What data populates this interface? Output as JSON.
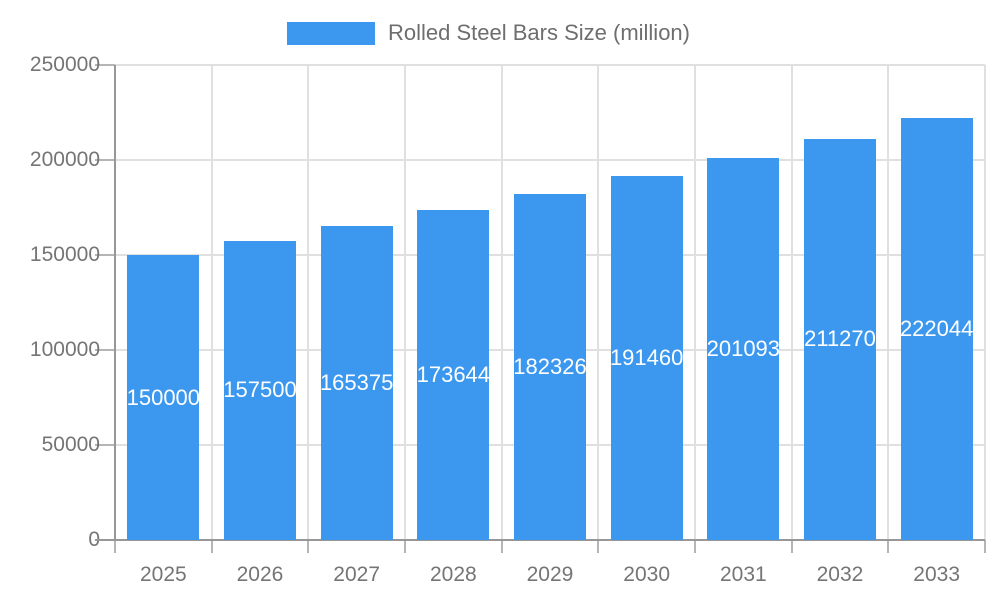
{
  "legend": {
    "label": "Rolled Steel Bars Size (million)",
    "swatch_color": "#3b98ee"
  },
  "colors": {
    "bar": "#3b98ee",
    "grid": "#e0e0e0",
    "axis": "#979797",
    "tick": "#b5b5b5",
    "axis_label": "#757575",
    "legend_text": "#6e6e6e",
    "value_label": "#ffffff",
    "background": "#ffffff"
  },
  "chart_data": {
    "type": "bar",
    "title": "",
    "xlabel": "",
    "ylabel": "",
    "categories": [
      "2025",
      "2026",
      "2027",
      "2028",
      "2029",
      "2030",
      "2031",
      "2032",
      "2033"
    ],
    "series": [
      {
        "name": "Rolled Steel Bars Size (million)",
        "values": [
          150000,
          157500,
          165375,
          173644,
          182326,
          191460,
          201093,
          211270,
          222044
        ]
      }
    ],
    "value_labels": [
      "150000",
      "157500",
      "165375",
      "173644",
      "182326",
      "191460",
      "201093",
      "211270",
      "222044"
    ],
    "ylim": [
      0,
      250000
    ],
    "yticks": [
      0,
      50000,
      100000,
      150000,
      200000,
      250000
    ],
    "ytick_labels": [
      "0",
      "50000",
      "100000",
      "150000",
      "200000",
      "250000"
    ],
    "grid": true,
    "legend_position": "top-center",
    "value_label_position": "inside-center"
  }
}
